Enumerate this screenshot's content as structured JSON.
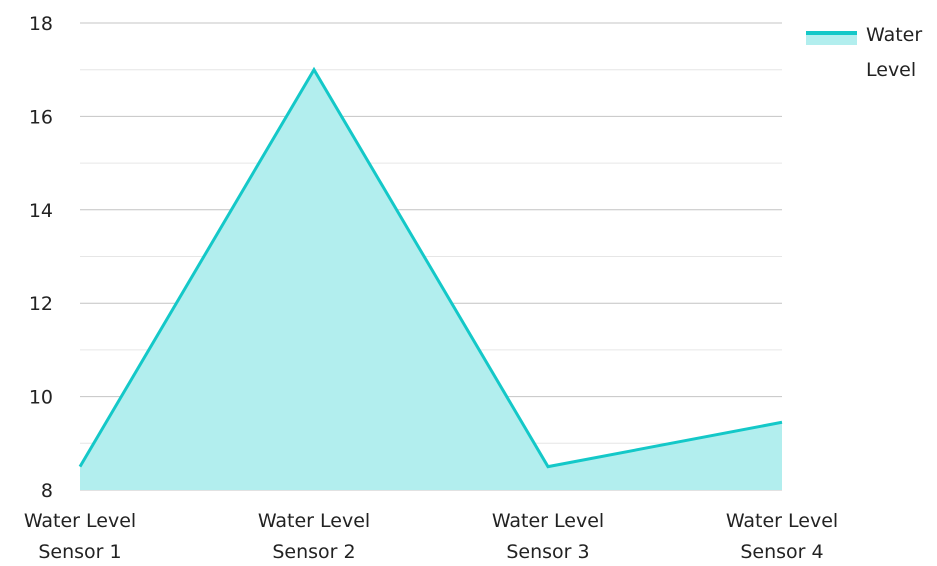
{
  "chart_data": {
    "type": "area",
    "categories": [
      [
        "Water Level",
        "Sensor 1"
      ],
      [
        "Water Level",
        "Sensor 2"
      ],
      [
        "Water Level",
        "Sensor 3"
      ],
      [
        "Water Level",
        "Sensor 4"
      ]
    ],
    "series": [
      {
        "name": "Water Level",
        "values": [
          8.5,
          17,
          8.5,
          9.45
        ]
      }
    ],
    "legend_lines": [
      "Water",
      "Level"
    ],
    "legend_position": "top-right",
    "ylim": [
      8,
      18
    ],
    "y_ticks": [
      8,
      10,
      12,
      14,
      16,
      18
    ],
    "grid": true,
    "colors": {
      "line": "#14c8c8",
      "fill": "#b2eeee",
      "grid_major": "#c4c4c4",
      "grid_minor": "#e6e6e6"
    }
  }
}
